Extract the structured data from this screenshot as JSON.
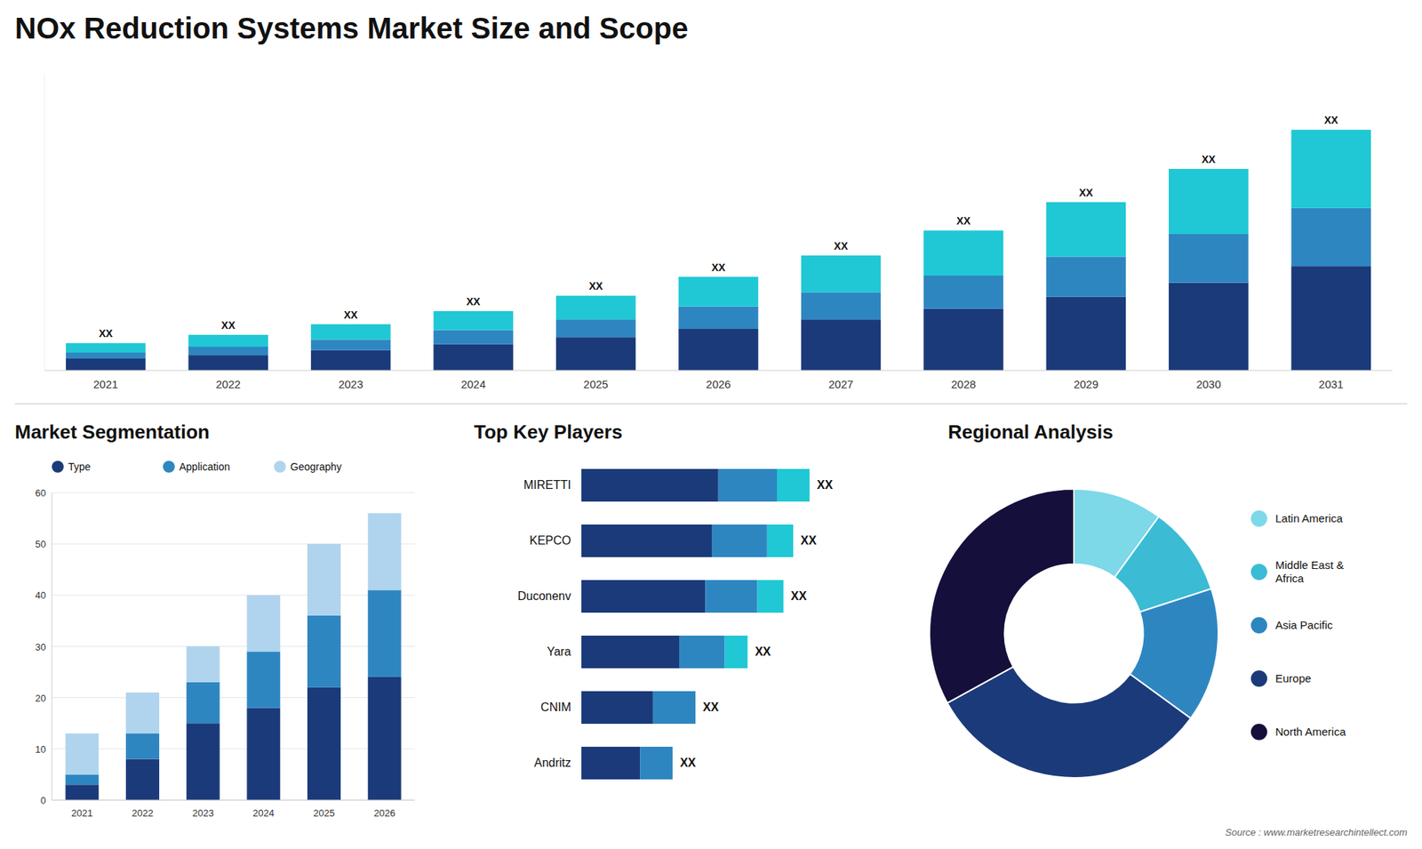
{
  "chart_data": [
    {
      "type": "bar",
      "title": "NOx Reduction Systems Market Size and Scope",
      "stacked": true,
      "categories": [
        "2021",
        "2022",
        "2023",
        "2024",
        "2025",
        "2026",
        "2027",
        "2028",
        "2029",
        "2030",
        "2031"
      ],
      "series": [
        {
          "color": "#1b3a7a",
          "values": [
            1.0,
            1.3,
            1.7,
            2.2,
            2.8,
            3.5,
            4.3,
            5.2,
            6.2,
            7.4,
            8.8
          ]
        },
        {
          "color": "#2e86c1",
          "values": [
            0.5,
            0.7,
            0.9,
            1.2,
            1.5,
            1.9,
            2.3,
            2.8,
            3.4,
            4.1,
            4.9
          ]
        },
        {
          "color": "#1fc8d4",
          "values": [
            0.8,
            1.0,
            1.3,
            1.6,
            2.0,
            2.5,
            3.1,
            3.8,
            4.6,
            5.5,
            6.6
          ]
        }
      ],
      "ylim": [
        0,
        25
      ],
      "tick_labels": "x",
      "annotations": [
        "XX",
        "XX",
        "XX",
        "XX",
        "XX",
        "XX",
        "XX",
        "XX",
        "XX",
        "XX",
        "XX"
      ]
    },
    {
      "type": "bar",
      "title": "Market Segmentation",
      "stacked": true,
      "categories": [
        "2021",
        "2022",
        "2023",
        "2024",
        "2025",
        "2026"
      ],
      "series": [
        {
          "name": "Type",
          "color": "#1b3a7a",
          "values": [
            3,
            8,
            15,
            18,
            22,
            24
          ]
        },
        {
          "name": "Application",
          "color": "#2e86c1",
          "values": [
            2,
            5,
            8,
            11,
            14,
            17
          ]
        },
        {
          "name": "Geography",
          "color": "#b0d4ee",
          "values": [
            8,
            8,
            7,
            11,
            14,
            15
          ]
        }
      ],
      "ylim": [
        0,
        60
      ],
      "yticks": [
        0,
        10,
        20,
        30,
        40,
        50,
        60
      ],
      "grid": true,
      "legend": "top"
    },
    {
      "type": "bar",
      "title": "Top Key Players",
      "orientation": "horizontal",
      "stacked": true,
      "categories": [
        "MIRETTI",
        "KEPCO",
        "Duconenv",
        "Yara",
        "CNIM",
        "Andritz"
      ],
      "series": [
        {
          "color": "#1b3a7a",
          "values": [
            0.42,
            0.4,
            0.38,
            0.3,
            0.22,
            0.18
          ]
        },
        {
          "color": "#2e86c1",
          "values": [
            0.18,
            0.17,
            0.16,
            0.14,
            0.13,
            0.1
          ]
        },
        {
          "color": "#1fc8d4",
          "values": [
            0.1,
            0.08,
            0.08,
            0.07,
            0.0,
            0.0
          ]
        }
      ],
      "xlim": [
        0,
        1
      ],
      "tick_labels": "y",
      "annotations": [
        "XX",
        "XX",
        "XX",
        "XX",
        "XX",
        "XX"
      ]
    },
    {
      "type": "donut",
      "title": "Regional Analysis",
      "categories": [
        "Latin America",
        "Middle East &\nAfrica",
        "Asia Pacific",
        "Europe",
        "North America"
      ],
      "values": [
        0.1,
        0.1,
        0.15,
        0.32,
        0.33
      ],
      "colors": [
        "#7dd8e8",
        "#3bbcd4",
        "#2e86c1",
        "#1b3a7a",
        "#150f3c"
      ],
      "legend": "right",
      "annotations": [
        "Source : www.marketresearchintellect.com"
      ]
    }
  ]
}
